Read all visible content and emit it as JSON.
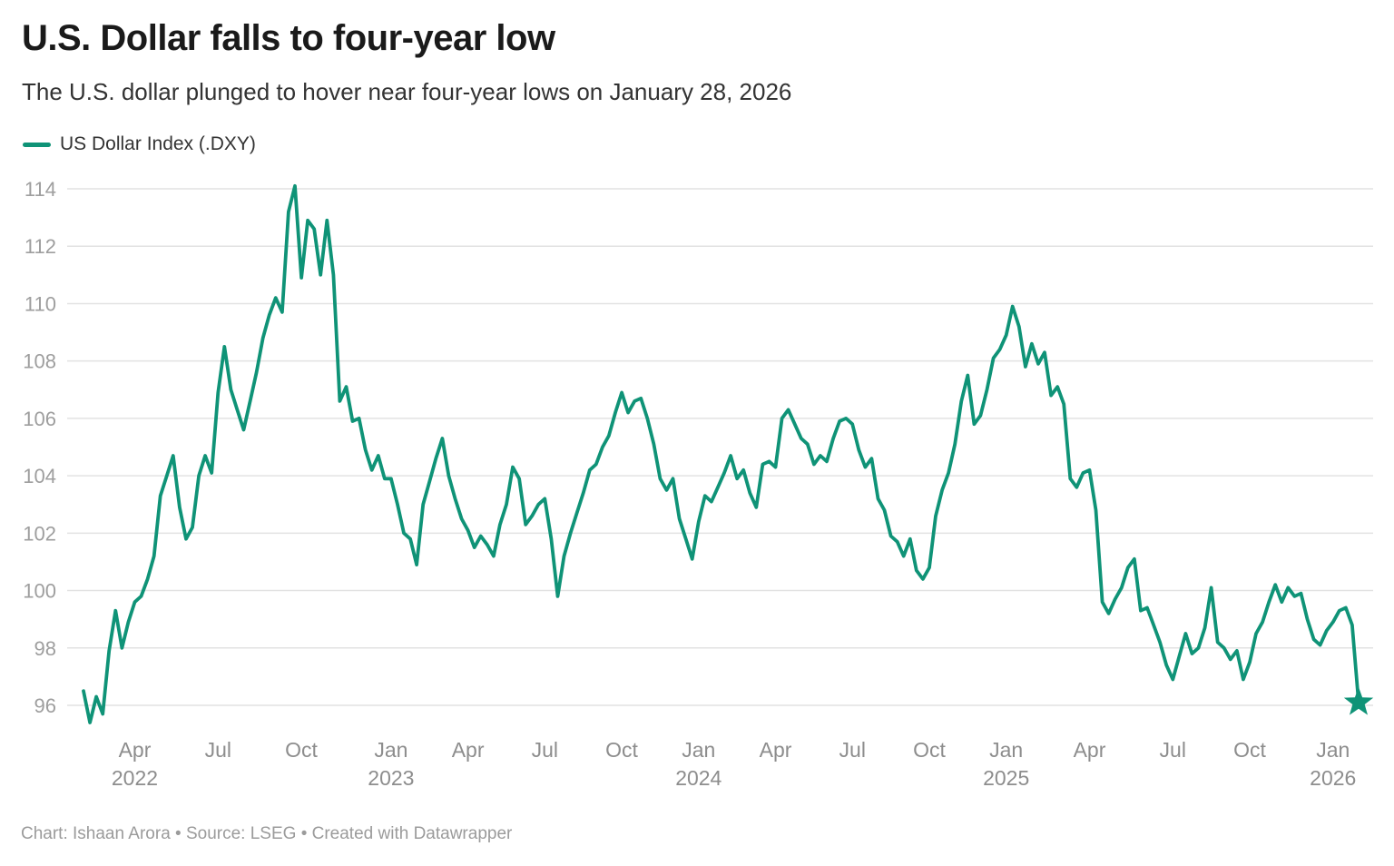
{
  "header": {
    "title": "U.S. Dollar falls to four-year low",
    "subtitle": "The U.S. dollar plunged to hover near four-year lows on January 28, 2026"
  },
  "legend": {
    "label": "US Dollar Index (.DXY)",
    "swatch_color": "#0f9377"
  },
  "footer": {
    "text": "Chart: Ishaan Arora • Source: LSEG • Created with Datawrapper"
  },
  "chart_data": {
    "type": "line",
    "title": "U.S. Dollar falls to four-year low",
    "subtitle": "The U.S. dollar plunged to hover near four-year lows on January 28, 2026",
    "xlabel": "",
    "ylabel": "",
    "grid": "horizontal",
    "legend_position": "top-left",
    "x_start": "Feb 2022",
    "x_end": "Jan 28, 2026",
    "ylim": [
      95.2,
      114.4
    ],
    "y_axis": {
      "ticks": [
        96,
        98,
        100,
        102,
        104,
        106,
        108,
        110,
        112,
        114
      ]
    },
    "x_axis": {
      "ticks": [
        {
          "label": "Apr",
          "year": "2022",
          "i": 8
        },
        {
          "label": "Jul",
          "year": "",
          "i": 21
        },
        {
          "label": "Oct",
          "year": "",
          "i": 34
        },
        {
          "label": "Jan",
          "year": "2023",
          "i": 48
        },
        {
          "label": "Apr",
          "year": "",
          "i": 60
        },
        {
          "label": "Jul",
          "year": "",
          "i": 72
        },
        {
          "label": "Oct",
          "year": "",
          "i": 84
        },
        {
          "label": "Jan",
          "year": "2024",
          "i": 96
        },
        {
          "label": "Apr",
          "year": "",
          "i": 108
        },
        {
          "label": "Jul",
          "year": "",
          "i": 120
        },
        {
          "label": "Oct",
          "year": "",
          "i": 132
        },
        {
          "label": "Jan",
          "year": "2025",
          "i": 144
        },
        {
          "label": "Apr",
          "year": "",
          "i": 157
        },
        {
          "label": "Jul",
          "year": "",
          "i": 170
        },
        {
          "label": "Oct",
          "year": "",
          "i": 182
        },
        {
          "label": "Jan",
          "year": "2026",
          "i": 195
        }
      ]
    },
    "series": [
      {
        "name": "US Dollar Index (.DXY)",
        "color": "#0f9377",
        "sampling": "approx. weekly readings, Feb 2022 – Jan 28 2026",
        "values": [
          96.5,
          95.4,
          96.3,
          95.7,
          97.9,
          99.3,
          98.0,
          98.9,
          99.6,
          99.8,
          100.4,
          101.2,
          103.3,
          104.0,
          104.7,
          102.9,
          101.8,
          102.2,
          104.0,
          104.7,
          104.1,
          106.9,
          108.5,
          107.0,
          106.3,
          105.6,
          106.6,
          107.6,
          108.8,
          109.6,
          110.2,
          109.7,
          113.2,
          114.1,
          110.9,
          112.9,
          112.6,
          111.0,
          112.9,
          111.0,
          106.6,
          107.1,
          105.9,
          106.0,
          104.9,
          104.2,
          104.7,
          103.9,
          103.9,
          103.0,
          102.0,
          101.8,
          100.9,
          103.0,
          103.8,
          104.6,
          105.3,
          104.0,
          103.2,
          102.5,
          102.1,
          101.5,
          101.9,
          101.6,
          101.2,
          102.3,
          103.0,
          104.3,
          103.9,
          102.3,
          102.6,
          103.0,
          103.2,
          101.8,
          99.8,
          101.2,
          102.0,
          102.7,
          103.4,
          104.2,
          104.4,
          105.0,
          105.4,
          106.2,
          106.9,
          106.2,
          106.6,
          106.7,
          106.0,
          105.1,
          103.9,
          103.5,
          103.9,
          102.5,
          101.8,
          101.1,
          102.4,
          103.3,
          103.1,
          103.6,
          104.1,
          104.7,
          103.9,
          104.2,
          103.4,
          102.9,
          104.4,
          104.5,
          104.3,
          106.0,
          106.3,
          105.8,
          105.3,
          105.1,
          104.4,
          104.7,
          104.5,
          105.3,
          105.9,
          106.0,
          105.8,
          104.9,
          104.3,
          104.6,
          103.2,
          102.8,
          101.9,
          101.7,
          101.2,
          101.8,
          100.7,
          100.4,
          100.8,
          102.6,
          103.5,
          104.1,
          105.1,
          106.6,
          107.5,
          105.8,
          106.1,
          107.0,
          108.1,
          108.4,
          108.9,
          109.9,
          109.2,
          107.8,
          108.6,
          107.9,
          108.3,
          106.8,
          107.1,
          106.5,
          103.9,
          103.6,
          104.1,
          104.2,
          102.8,
          99.6,
          99.2,
          99.7,
          100.1,
          100.8,
          101.1,
          99.3,
          99.4,
          98.8,
          98.2,
          97.4,
          96.9,
          97.7,
          98.5,
          97.8,
          98.0,
          98.7,
          100.1,
          98.2,
          98.0,
          97.6,
          97.9,
          96.9,
          97.5,
          98.5,
          98.9,
          99.6,
          100.2,
          99.6,
          100.1,
          99.8,
          99.9,
          99.0,
          98.3,
          98.1,
          98.6,
          98.9,
          99.3,
          99.4,
          98.8,
          96.1
        ]
      }
    ],
    "end_marker": {
      "shape": "star",
      "series": "US Dollar Index (.DXY)",
      "value": 96.1,
      "label_date": "January 28, 2026"
    }
  }
}
